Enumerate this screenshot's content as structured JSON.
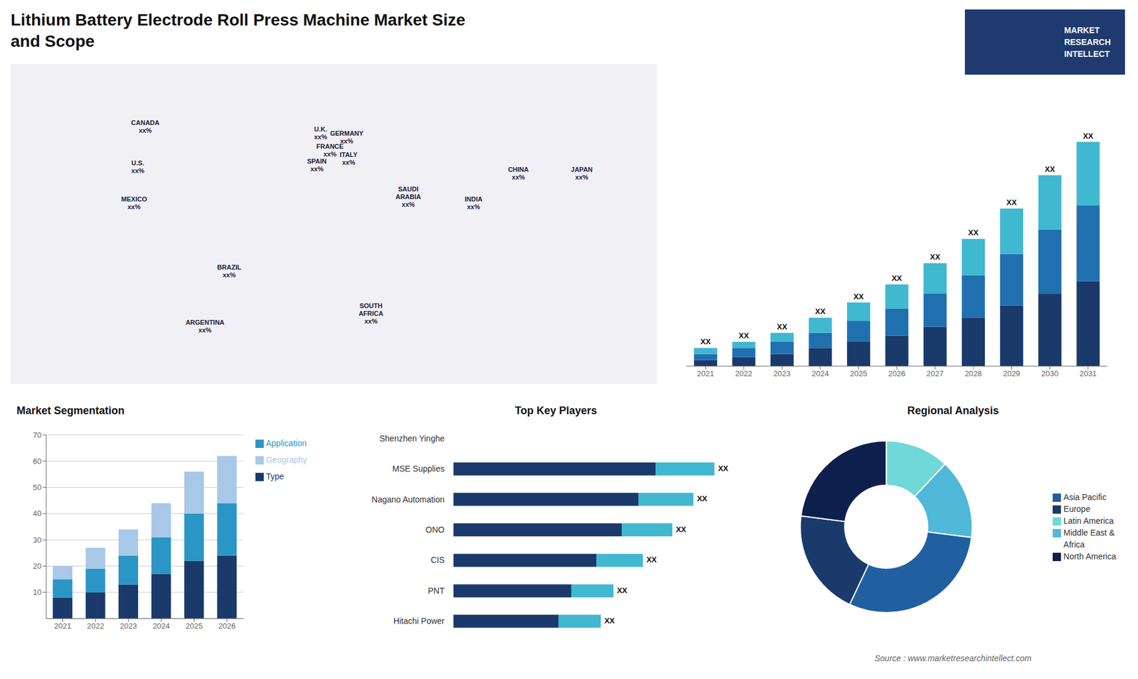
{
  "chart_data": [
    {
      "type": "map",
      "title": "Lithium Battery Electrode Roll Press Machine Market Size\nand Scope",
      "xlim": [
        -165,
        175
      ],
      "ylim": [
        -60,
        85
      ],
      "tick_labels": false,
      "annotations": [
        {
          "text": "U.S.\nxx%",
          "x": -100,
          "y": 39
        },
        {
          "text": "CANADA\nxx%",
          "x": -96,
          "y": 58
        },
        {
          "text": "MEXICO\nxx%",
          "x": -102,
          "y": 22
        },
        {
          "text": "BRAZIL\nxx%",
          "x": -51,
          "y": -10
        },
        {
          "text": "ARGENTINA\nxx%",
          "x": -64,
          "y": -36
        },
        {
          "text": "U.K.\nxx%",
          "x": -2,
          "y": 55
        },
        {
          "text": "FRANCE\nxx%",
          "x": 3,
          "y": 47
        },
        {
          "text": "SPAIN\nxx%",
          "x": -4,
          "y": 40
        },
        {
          "text": "GERMANY\nxx%",
          "x": 12,
          "y": 53
        },
        {
          "text": "ITALY\nxx%",
          "x": 13,
          "y": 43
        },
        {
          "text": "SAUDI\nARABIA\nxx%",
          "x": 45,
          "y": 25
        },
        {
          "text": "SOUTH\nAFRICA\nxx%",
          "x": 25,
          "y": -30
        },
        {
          "text": "CHINA\nxx%",
          "x": 104,
          "y": 36
        },
        {
          "text": "JAPAN\nxx%",
          "x": 138,
          "y": 36
        },
        {
          "text": "INDIA\nxx%",
          "x": 80,
          "y": 22
        }
      ]
    },
    {
      "type": "bar",
      "stacked": true,
      "grid": false,
      "tick_labels": "x",
      "ylim": [
        0,
        88
      ],
      "categories": [
        "2021",
        "2022",
        "2023",
        "2024",
        "2025",
        "2026",
        "2027",
        "2028",
        "2029",
        "2030",
        "2031"
      ],
      "series": [
        {
          "color": "#1a3a6b",
          "values": [
            2,
            3,
            4,
            6,
            8,
            10,
            13,
            16,
            20,
            24,
            28
          ]
        },
        {
          "color": "#2070b0",
          "values": [
            2,
            3,
            4,
            5,
            7,
            9,
            11,
            14,
            17,
            21,
            25
          ]
        },
        {
          "color": "#40b8d0",
          "values": [
            2,
            2,
            3,
            5,
            6,
            8,
            10,
            12,
            15,
            18,
            21
          ],
          "value_labels": [
            "XX",
            "XX",
            "XX",
            "XX",
            "XX",
            "XX",
            "XX",
            "XX",
            "XX",
            "XX",
            "XX"
          ]
        }
      ],
      "annotations": [
        "MARKET",
        "RESEARCH",
        "INTELLECT"
      ]
    },
    {
      "type": "bar",
      "title": "Market Segmentation",
      "stacked": true,
      "grid": true,
      "legend": "right",
      "categories": [
        "2021",
        "2022",
        "2023",
        "2024",
        "2025",
        "2026"
      ],
      "series": [
        {
          "name": "Type",
          "color": "#1a3a6b",
          "values": [
            8,
            10,
            13,
            17,
            22,
            24
          ]
        },
        {
          "name": "Application",
          "color": "#2a96c5",
          "values": [
            7,
            9,
            11,
            14,
            18,
            20
          ]
        },
        {
          "name": "Geography",
          "color": "#a8c8e8",
          "values": [
            5,
            8,
            10,
            13,
            16,
            18
          ]
        }
      ],
      "ylim": [
        0,
        70
      ],
      "yticks": [
        10,
        20,
        30,
        40,
        50,
        60,
        70
      ]
    },
    {
      "type": "bar",
      "title": "Top Key Players",
      "orientation": "horizontal",
      "stacked": true,
      "tick_labels": "y",
      "categories": [
        "Shenzhen Yinghe",
        "MSE Supplies",
        "Nagano Automation",
        "ONO",
        "CIS",
        "PNT",
        "Hitachi Power"
      ],
      "series": [
        {
          "color": "#1a3a6b",
          "values": [
            0,
            48,
            44,
            40,
            34,
            28,
            25
          ]
        },
        {
          "color": "#40b8d0",
          "values": [
            0,
            14,
            13,
            12,
            11,
            10,
            10
          ],
          "value_labels": [
            null,
            "XX",
            "XX",
            "XX",
            "XX",
            "XX",
            "XX"
          ]
        }
      ],
      "xlim": [
        -1,
        68
      ]
    },
    {
      "type": "pie",
      "title": "Regional Analysis",
      "legend": "right",
      "categories": [
        "Latin America",
        "Middle East &\nAfrica",
        "Asia Pacific",
        "Europe",
        "North America"
      ],
      "values": [
        12,
        15,
        30,
        20,
        23
      ],
      "colors": [
        "#70d8d8",
        "#50b8d8",
        "#2060a0",
        "#1a3a6b",
        "#0d1f4c"
      ],
      "annotations": [
        "Source : www.marketresearchintellect.com"
      ]
    }
  ]
}
